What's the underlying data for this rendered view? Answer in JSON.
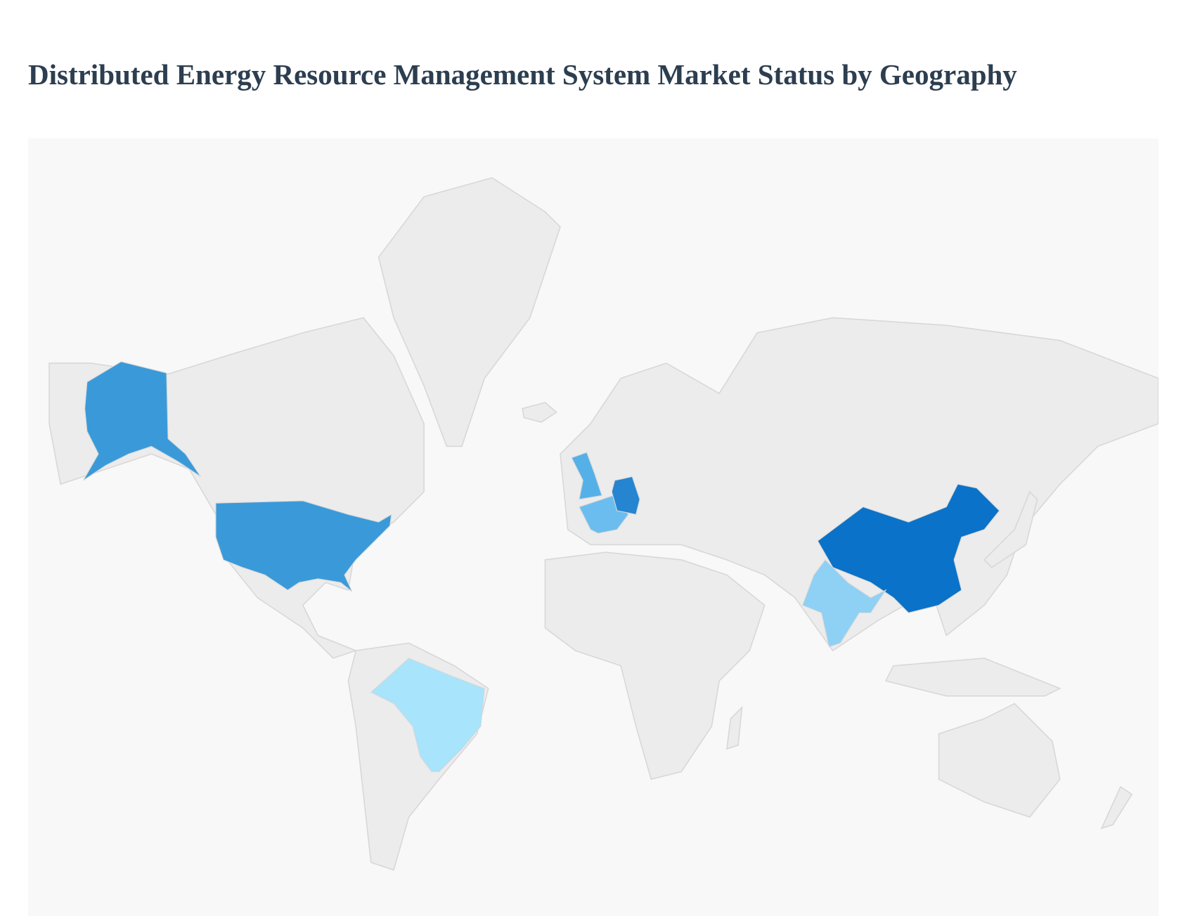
{
  "header": {
    "title": "Distributed Energy Resource Management System Market Status by Geography"
  },
  "map": {
    "base_color": "#ececec",
    "border_color": "#d8d8d8",
    "highlight_colors": [
      "#3a9ad9",
      "#3a9ad9",
      "#a8e4fb",
      "#55b0e8",
      "#6cbdef",
      "#2585d0",
      "#0a72c8",
      "#8fd0f5"
    ]
  }
}
